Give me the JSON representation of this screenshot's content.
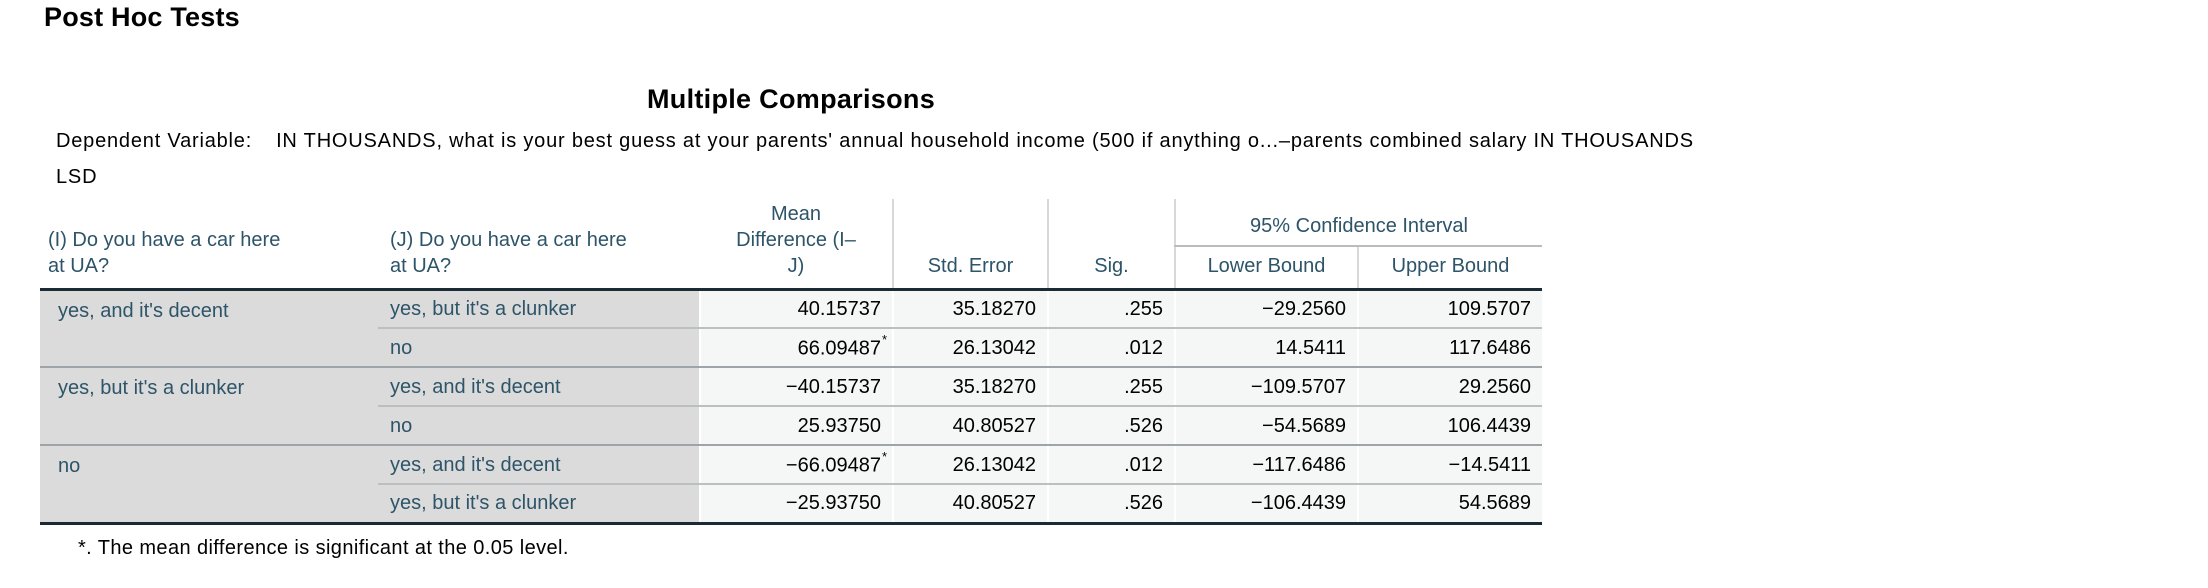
{
  "section_title": "Post Hoc Tests",
  "table": {
    "title": "Multiple Comparisons",
    "dependent_variable_label": "Dependent Variable:",
    "dependent_variable": "IN THOUSANDS, what is your best guess at your parents' annual household income (500 if anything o...–parents combined salary IN THOUSANDS",
    "method": "LSD",
    "headers": {
      "i": "(I) Do you have a car here\nat UA?",
      "j": "(J) Do you have a car here\nat UA?",
      "mean_difference": "Mean\nDifference (I–\nJ)",
      "std_error": "Std. Error",
      "sig": "Sig.",
      "confidence_interval": "95% Confidence Interval",
      "lower_bound": "Lower Bound",
      "upper_bound": "Upper Bound"
    },
    "groups": [
      {
        "i": "yes, and it's decent",
        "rows": [
          {
            "j": "yes, but it's a clunker",
            "mean_difference": "40.15737",
            "significant": false,
            "std_error": "35.18270",
            "sig": ".255",
            "lower_bound": "−29.2560",
            "upper_bound": "109.5707"
          },
          {
            "j": "no",
            "mean_difference": "66.09487",
            "significant": true,
            "std_error": "26.13042",
            "sig": ".012",
            "lower_bound": "14.5411",
            "upper_bound": "117.6486"
          }
        ]
      },
      {
        "i": "yes, but it's a clunker",
        "rows": [
          {
            "j": "yes, and it's decent",
            "mean_difference": "−40.15737",
            "significant": false,
            "std_error": "35.18270",
            "sig": ".255",
            "lower_bound": "−109.5707",
            "upper_bound": "29.2560"
          },
          {
            "j": "no",
            "mean_difference": "25.93750",
            "significant": false,
            "std_error": "40.80527",
            "sig": ".526",
            "lower_bound": "−54.5689",
            "upper_bound": "106.4439"
          }
        ]
      },
      {
        "i": "no",
        "rows": [
          {
            "j": "yes, and it's decent",
            "mean_difference": "−66.09487",
            "significant": true,
            "std_error": "26.13042",
            "sig": ".012",
            "lower_bound": "−117.6486",
            "upper_bound": "−14.5411"
          },
          {
            "j": "yes, but it's a clunker",
            "mean_difference": "−25.93750",
            "significant": false,
            "std_error": "40.80527",
            "sig": ".526",
            "lower_bound": "−106.4439",
            "upper_bound": "54.5689"
          }
        ]
      }
    ],
    "significance_marker": "*",
    "footnote": "*. The mean difference is significant at the 0.05 level.",
    "colors": {
      "header_text": "#2d5468",
      "stub_background": "#dbdbdb",
      "cell_background": "#f5f6f6",
      "strong_rule": "#1b2b36",
      "group_rule": "#9ea4a7",
      "inner_rule": "#bcbfc1"
    }
  }
}
